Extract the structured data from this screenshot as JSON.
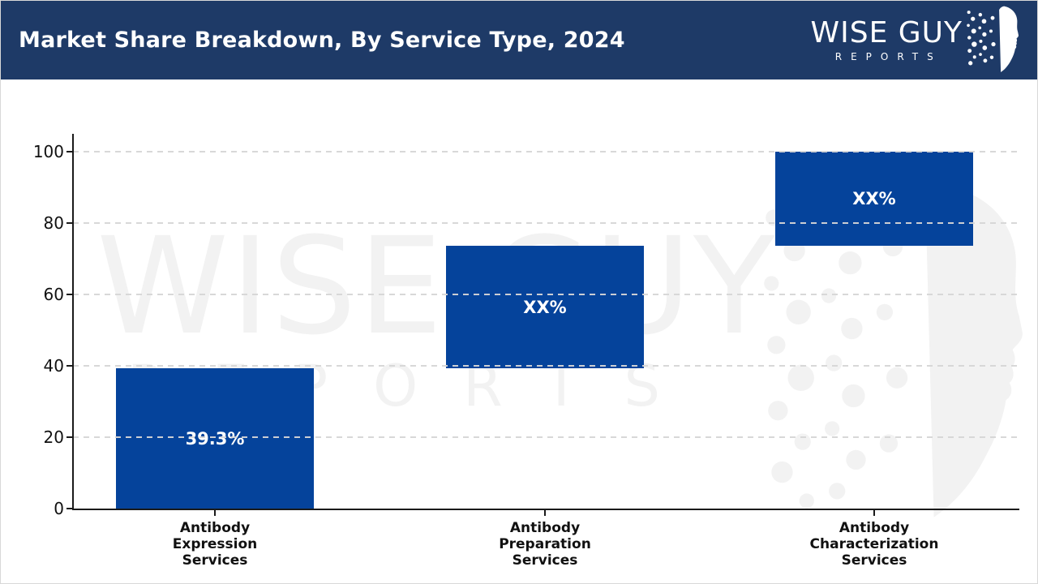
{
  "header": {
    "title": "Market Share Breakdown, By Service Type, 2024",
    "logo": {
      "line1": "WISE GUY",
      "line2": "REPORTS"
    }
  },
  "watermark": {
    "line1": "WISE GUY",
    "line2": "REPORTS"
  },
  "chart_data": {
    "type": "bar",
    "subtype": "waterfall",
    "title": "Market Share Breakdown, By Service Type, 2024",
    "categories": [
      "Antibody\nExpression\nServices",
      "Antibody\nPreparation\nServices",
      "Antibody\nCharacterization\nServices"
    ],
    "segments": [
      {
        "category": "Antibody Expression Services",
        "start": 0,
        "end": 39.3,
        "label": "39.3%"
      },
      {
        "category": "Antibody Preparation Services",
        "start": 39.3,
        "end": 73.6,
        "label": "XX%"
      },
      {
        "category": "Antibody Characterization Services",
        "start": 73.6,
        "end": 100,
        "label": "XX%"
      }
    ],
    "yticks": [
      0,
      20,
      40,
      60,
      80,
      100
    ],
    "ylim": [
      0,
      105
    ],
    "xlabel": "",
    "ylabel": "",
    "grid": "horizontal-dashed-over-bars",
    "legend": "none",
    "bar_color": "#05439b",
    "bar_label_color": "#ffffff"
  },
  "colors": {
    "header_bg": "#1e3a67",
    "bar": "#05439b",
    "watermark": "#f2f2f2",
    "gridline": "#d6d6d6",
    "axis": "#1a1a1a",
    "text": "#111111"
  }
}
